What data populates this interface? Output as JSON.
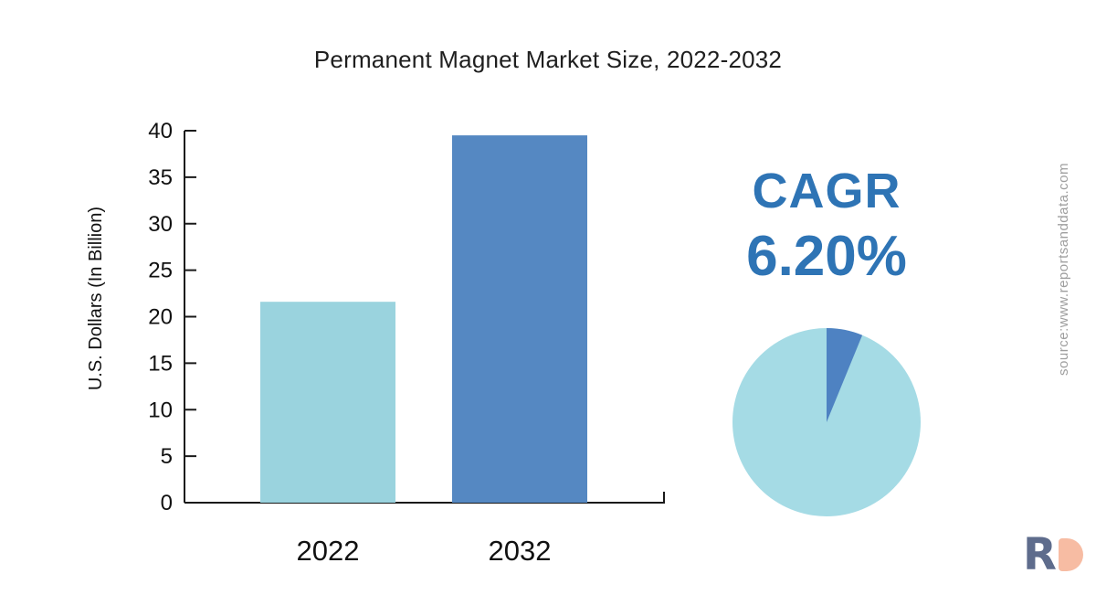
{
  "title": "Permanent Magnet Market Size, 2022-2032",
  "chart_data": [
    {
      "type": "bar",
      "title": "Permanent Magnet Market Size, 2022-2032",
      "categories": [
        "2022",
        "2032"
      ],
      "values": [
        21.6,
        39.5
      ],
      "xlabel": "",
      "ylabel": "U.S. Dollars (In Billion)",
      "ylim": [
        0,
        40
      ],
      "yticks": [
        0,
        5,
        10,
        15,
        20,
        25,
        30,
        35,
        40
      ],
      "grid": false,
      "legend": false,
      "bar_colors": [
        "#9AD3DE",
        "#5588C2"
      ]
    },
    {
      "type": "pie",
      "title": "CAGR 6.20%",
      "slices": [
        {
          "label": "CAGR 6.20%",
          "value": 6.2,
          "color": "#4E82C2"
        },
        {
          "label": "",
          "value": 93.8,
          "color": "#A5DBE5"
        }
      ],
      "start_angle_deg": 0,
      "legend": false
    }
  ],
  "cagr": {
    "label": "CAGR",
    "value": "6.20%",
    "color": "#2E74B5"
  },
  "source": {
    "text": "source:www.reportsanddata.com"
  },
  "logo": {
    "r": "R"
  },
  "colors": {
    "background": "#ffffff",
    "axis": "#1a1a1a",
    "bar_2022": "#9AD3DE",
    "bar_2032": "#5588C2",
    "pie_light": "#A5DBE5",
    "pie_dark": "#4E82C2",
    "cagr_blue": "#2E74B5",
    "source_gray": "#9e9e9e",
    "logo_r": "#5E6C8C",
    "logo_d": "#F7BCA3"
  }
}
